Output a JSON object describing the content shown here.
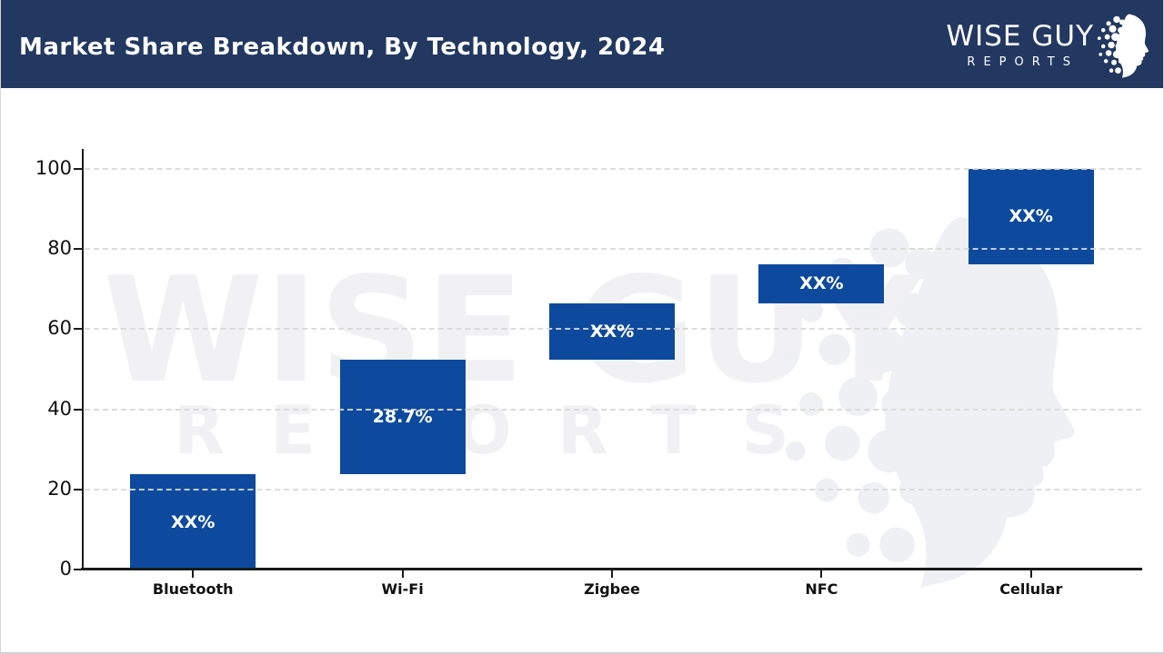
{
  "header": {
    "title": "Market Share Breakdown, By Technology, 2024",
    "background_color": "#223861",
    "logo": {
      "line1": "WISE GUY",
      "line2": "REPORTS"
    }
  },
  "watermark": {
    "line1": "WISE GUY",
    "line2": "REPORTS"
  },
  "chart_data": {
    "type": "bar",
    "variant": "floating-waterfall",
    "title": "Market Share Breakdown, By Technology, 2024",
    "categories": [
      "Bluetooth",
      "Wi-Fi",
      "Zigbee",
      "NFC",
      "Cellular"
    ],
    "segments": [
      {
        "category": "Bluetooth",
        "start": 0,
        "end": 23.7,
        "label": "XX%"
      },
      {
        "category": "Wi-Fi",
        "start": 23.7,
        "end": 52.4,
        "label": "28.7%"
      },
      {
        "category": "Zigbee",
        "start": 52.4,
        "end": 66.5,
        "label": "XX%"
      },
      {
        "category": "NFC",
        "start": 66.5,
        "end": 76.3,
        "label": "XX%"
      },
      {
        "category": "Cellular",
        "start": 76.3,
        "end": 100,
        "label": "XX%"
      }
    ],
    "yticks": [
      0,
      20,
      40,
      60,
      80,
      100
    ],
    "ylim": [
      0,
      105
    ],
    "xlabel": "",
    "ylabel": "",
    "grid": "horizontal-dashed",
    "legend": "none",
    "bar_color": "#0d4a9e",
    "bar_label_color": "#ffffff",
    "axis_color": "#1a1a1a"
  }
}
